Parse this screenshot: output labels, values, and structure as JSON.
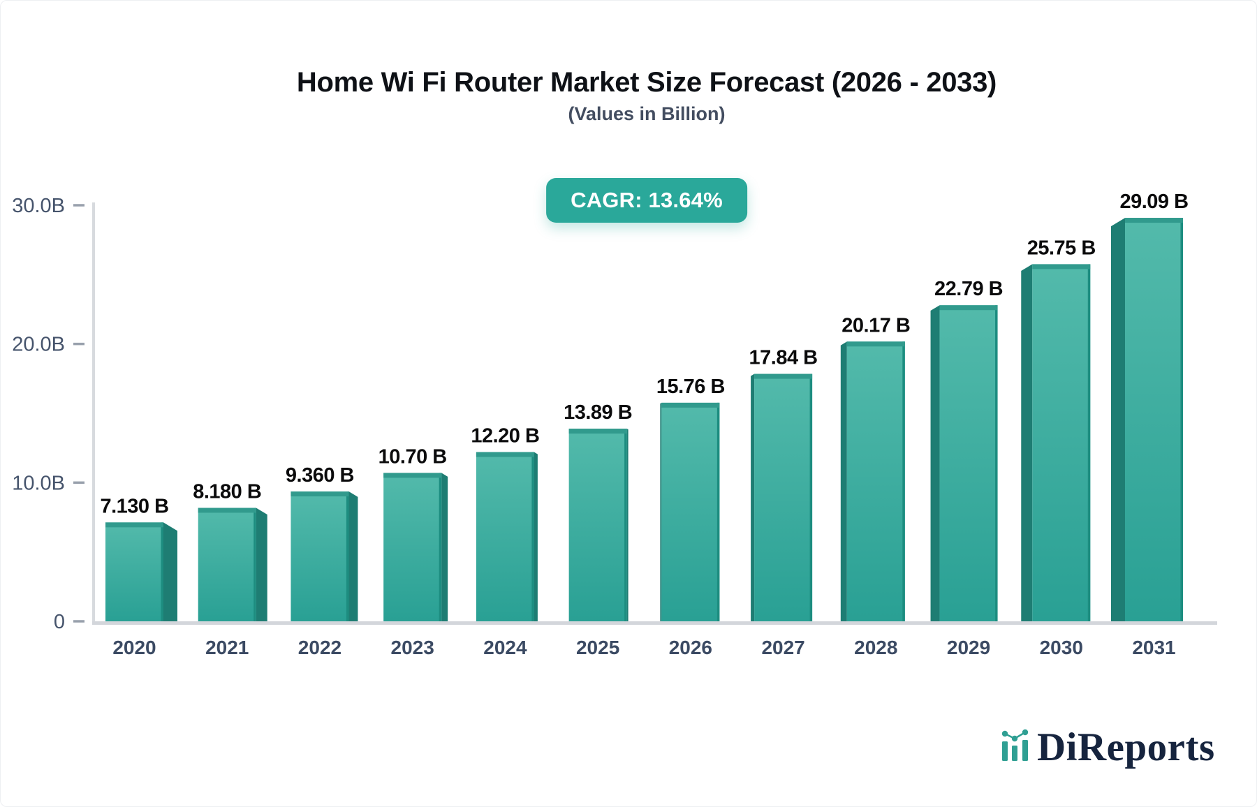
{
  "chart": {
    "title": "Home Wi Fi Router Market Size Forecast (2026 - 2033)",
    "subtitle": "(Values in Billion)",
    "cagr_label": "CAGR: 13.64%"
  },
  "chart_data": {
    "type": "bar",
    "title": "Home Wi Fi Router Market Size Forecast (2026 - 2033)",
    "subtitle": "(Values in Billion)",
    "cagr": "13.64%",
    "categories": [
      "2020",
      "2021",
      "2022",
      "2023",
      "2024",
      "2025",
      "2026",
      "2027",
      "2028",
      "2029",
      "2030",
      "2031"
    ],
    "values": [
      7.13,
      8.18,
      9.36,
      10.7,
      12.2,
      13.89,
      15.76,
      17.84,
      20.17,
      22.79,
      25.75,
      29.09
    ],
    "value_labels": [
      "7.130 B",
      "8.180 B",
      "9.360 B",
      "10.70 B",
      "12.20 B",
      "13.89 B",
      "15.76 B",
      "17.84 B",
      "20.17 B",
      "22.79 B",
      "25.75 B",
      "29.09 B"
    ],
    "xlabel": "",
    "ylabel": "",
    "ylim": [
      0,
      30
    ],
    "yticks": [
      {
        "value": 30,
        "label": "30.0B"
      },
      {
        "value": 20,
        "label": "20.0B"
      },
      {
        "value": 10,
        "label": "10.0B"
      },
      {
        "value": 0,
        "label": "0"
      }
    ],
    "grid": false,
    "legend": false
  },
  "colors": {
    "bar_front_top": "#53baab",
    "bar_front_bottom": "#29a094",
    "bar_side": "#1e7d73",
    "bar_edge": "#1d8d80",
    "bar_top_face": "#319a8d",
    "badge_bg": "#2aa89a",
    "axis_line": "#d7dade",
    "baseline": "#d3d6db",
    "tick": "#98a0ac",
    "logo_teal": "#2f9f93",
    "logo_navy": "#16243e"
  },
  "logo": {
    "text": "DiReports",
    "icon": "mini-bar-chart-icon"
  }
}
